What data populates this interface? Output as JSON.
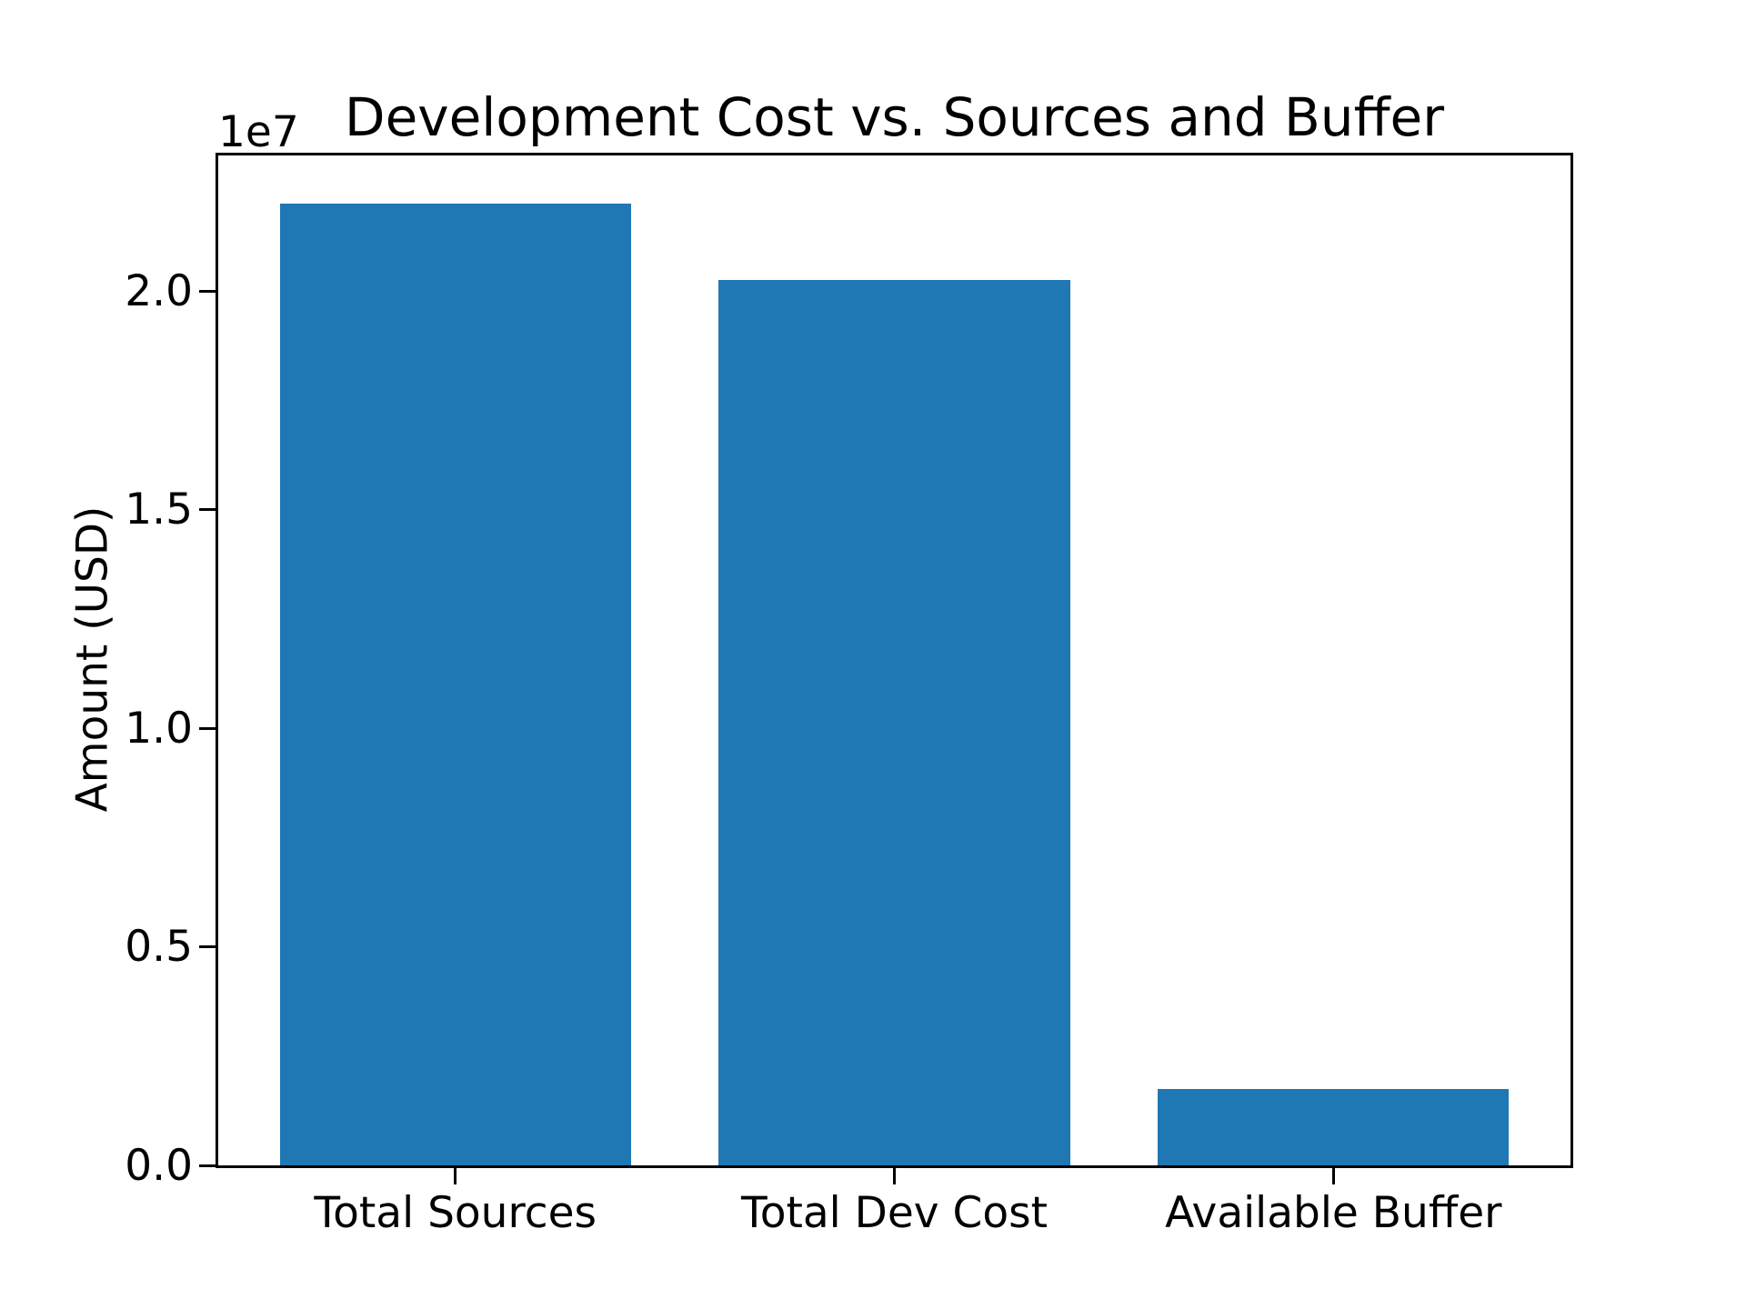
{
  "chart_data": {
    "type": "bar",
    "title": "Development Cost vs. Sources and Buffer",
    "categories": [
      "Total Sources",
      "Total Dev Cost",
      "Available Buffer"
    ],
    "values": [
      22000000,
      20250000,
      1750000
    ],
    "xlabel": "",
    "ylabel": "Amount (USD)",
    "ylim": [
      0,
      23100000
    ],
    "yticks": [
      0,
      5000000,
      10000000,
      15000000,
      20000000
    ],
    "ytick_labels": [
      "0.0",
      "0.5",
      "1.0",
      "1.5",
      "2.0"
    ],
    "y_offset_text": "1e7",
    "bar_color": "#1f77b4",
    "bar_width_fraction": 0.8,
    "x_unit_span": 3.08,
    "x_left_pad_units": 0.54,
    "grid": false,
    "legend": null,
    "background_color": "#ffffff",
    "text_color": "#000000",
    "spine_color": "#000000"
  }
}
